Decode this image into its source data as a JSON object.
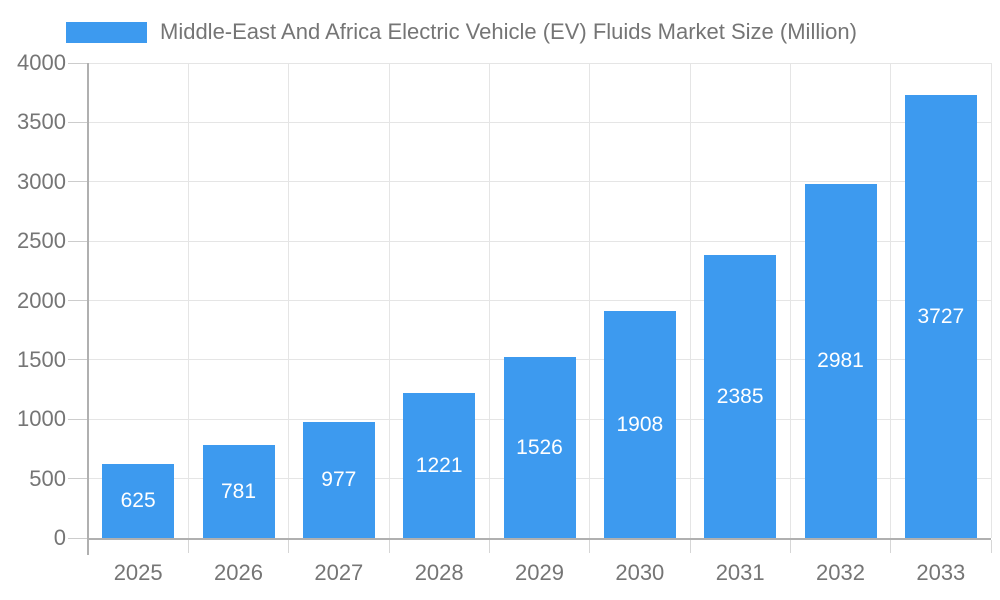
{
  "chart_data": {
    "type": "bar",
    "title": "Middle-East And Africa Electric Vehicle (EV) Fluids Market Size (Million)",
    "legend_position": "top",
    "categories": [
      "2025",
      "2026",
      "2027",
      "2028",
      "2029",
      "2030",
      "2031",
      "2032",
      "2033"
    ],
    "values": [
      625,
      781,
      977,
      1221,
      1526,
      1908,
      2385,
      2981,
      3727
    ],
    "series": [
      {
        "name": "Middle-East And Africa Electric Vehicle (EV) Fluids Market Size (Million)",
        "values": [
          625,
          781,
          977,
          1221,
          1526,
          1908,
          2385,
          2981,
          3727
        ]
      }
    ],
    "value_labels": [
      "625",
      "781",
      "977",
      "1221",
      "1526",
      "1908",
      "2385",
      "2981",
      "3727"
    ],
    "xlabel": "",
    "ylabel": "",
    "ylim": [
      0,
      4000
    ],
    "y_ticks": [
      0,
      500,
      1000,
      1500,
      2000,
      2500,
      3000,
      3500,
      4000
    ],
    "grid": true,
    "colors": {
      "bar": "#3d9aef",
      "value_label": "#ffffff",
      "axis": "#b0b0b0",
      "gridline": "#e5e5e5",
      "tick": "#cccccc",
      "x_tick": "#d6d6d6",
      "label_text": "#757575",
      "title_text": "#757575",
      "background": "#ffffff"
    }
  }
}
